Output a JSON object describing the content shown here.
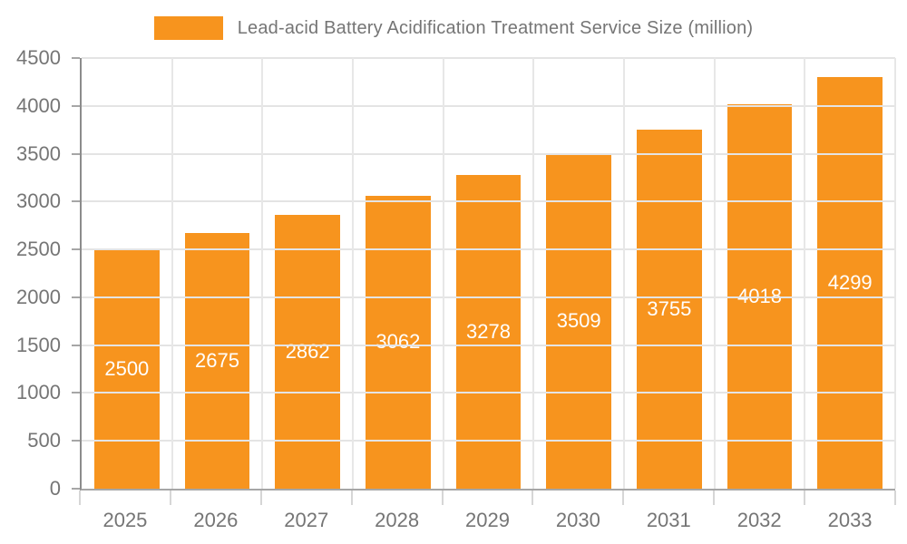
{
  "chart_data": {
    "type": "bar",
    "title": "Lead-acid Battery Acidification Treatment Service Size (million)",
    "categories": [
      "2025",
      "2026",
      "2027",
      "2028",
      "2029",
      "2030",
      "2031",
      "2032",
      "2033"
    ],
    "values": [
      2500,
      2675,
      2862,
      3062,
      3278,
      3509,
      3755,
      4018,
      4299
    ],
    "xlabel": "",
    "ylabel": "",
    "ylim": [
      0,
      4500
    ],
    "ytick_step": 500,
    "grid": true,
    "legend_position": "top",
    "bar_color": "#F7941E",
    "value_label_color": "#FFFFFF",
    "axis_text_color": "#757575"
  }
}
